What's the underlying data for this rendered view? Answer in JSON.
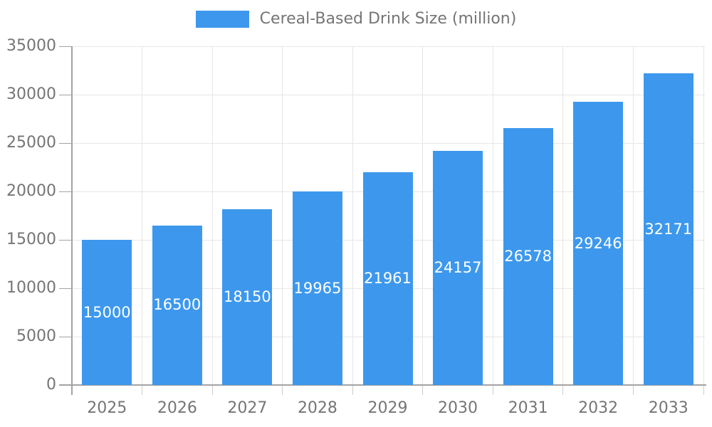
{
  "chart_data": {
    "type": "bar",
    "title": "Cereal-Based Drink Size (million)",
    "legend": {
      "label": "Cereal-Based Drink Size (million)",
      "position": "top-center"
    },
    "categories": [
      "2025",
      "2026",
      "2027",
      "2028",
      "2029",
      "2030",
      "2031",
      "2032",
      "2033"
    ],
    "series": [
      {
        "name": "Cereal-Based Drink Size (million)",
        "values": [
          15000,
          16500,
          18150,
          19965,
          21961,
          24157,
          26578,
          29246,
          32171
        ]
      }
    ],
    "bar_value_labels": [
      "15000",
      "16500",
      "18150",
      "19965",
      "21961",
      "24157",
      "26578",
      "29246",
      "32171"
    ],
    "xlabel": "",
    "ylabel": "",
    "ylim": [
      0,
      35000
    ],
    "yticks": [
      0,
      5000,
      10000,
      15000,
      20000,
      25000,
      30000,
      35000
    ],
    "ytick_labels": [
      "0",
      "5000",
      "10000",
      "15000",
      "20000",
      "25000",
      "30000",
      "35000"
    ],
    "grid": "on",
    "colors": {
      "bar": "#3d98ed",
      "bar_label_text": "#ffffff",
      "axis_text": "#757575",
      "grid_line": "#e6e6e6",
      "axis_line": "#a3a3a3",
      "x_tick": "#cccccc",
      "background": "#ffffff"
    }
  }
}
